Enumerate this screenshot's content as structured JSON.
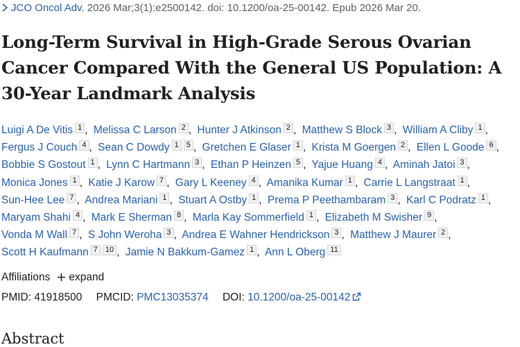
{
  "citation": {
    "journal": "JCO Oncol Adv.",
    "details": "2026 Mar;3(1):e2500142. doi: 10.1200/oa-25-00142. Epub 2026 Mar 20."
  },
  "title": "Long-Term Survival in High-Grade Serous Ovarian Cancer Compared With the General US Population: A 30-Year Landmark Analysis",
  "authors": [
    {
      "name": "Luigi A De Vitis",
      "affiliations": [
        "1"
      ]
    },
    {
      "name": "Melissa C Larson",
      "affiliations": [
        "2"
      ]
    },
    {
      "name": "Hunter J Atkinson",
      "affiliations": [
        "2"
      ]
    },
    {
      "name": "Matthew S Block",
      "affiliations": [
        "3"
      ]
    },
    {
      "name": "William A Cliby",
      "affiliations": [
        "1"
      ]
    },
    {
      "name": "Fergus J Couch",
      "affiliations": [
        "4"
      ]
    },
    {
      "name": "Sean C Dowdy",
      "affiliations": [
        "1",
        "5"
      ]
    },
    {
      "name": "Gretchen E Glaser",
      "affiliations": [
        "1"
      ]
    },
    {
      "name": "Krista M Goergen",
      "affiliations": [
        "2"
      ]
    },
    {
      "name": "Ellen L Goode",
      "affiliations": [
        "6"
      ]
    },
    {
      "name": "Bobbie S Gostout",
      "affiliations": [
        "1"
      ]
    },
    {
      "name": "Lynn C Hartmann",
      "affiliations": [
        "3"
      ]
    },
    {
      "name": "Ethan P Heinzen",
      "affiliations": [
        "5"
      ]
    },
    {
      "name": "Yajue Huang",
      "affiliations": [
        "4"
      ]
    },
    {
      "name": "Aminah Jatoi",
      "affiliations": [
        "3"
      ]
    },
    {
      "name": "Monica Jones",
      "affiliations": [
        "1"
      ]
    },
    {
      "name": "Katie J Karow",
      "affiliations": [
        "7"
      ]
    },
    {
      "name": "Gary L Keeney",
      "affiliations": [
        "4"
      ]
    },
    {
      "name": "Amanika Kumar",
      "affiliations": [
        "1"
      ]
    },
    {
      "name": "Carrie L Langstraat",
      "affiliations": [
        "1"
      ]
    },
    {
      "name": "Sun-Hee Lee",
      "affiliations": [
        "7"
      ]
    },
    {
      "name": "Andrea Mariani",
      "affiliations": [
        "1"
      ]
    },
    {
      "name": "Stuart A Ostby",
      "affiliations": [
        "1"
      ]
    },
    {
      "name": "Prema P Peethambaram",
      "affiliations": [
        "3"
      ]
    },
    {
      "name": "Karl C Podratz",
      "affiliations": [
        "1"
      ]
    },
    {
      "name": "Maryam Shahi",
      "affiliations": [
        "4"
      ]
    },
    {
      "name": "Mark E Sherman",
      "affiliations": [
        "8"
      ]
    },
    {
      "name": "Marla Kay Sommerfield",
      "affiliations": [
        "1"
      ]
    },
    {
      "name": "Elizabeth M Swisher",
      "affiliations": [
        "9"
      ]
    },
    {
      "name": "Vonda M Wall",
      "affiliations": [
        "7"
      ]
    },
    {
      "name": "S John Weroha",
      "affiliations": [
        "3"
      ]
    },
    {
      "name": "Andrea E Wahner Hendrickson",
      "affiliations": [
        "3"
      ]
    },
    {
      "name": "Matthew J Maurer",
      "affiliations": [
        "2"
      ]
    },
    {
      "name": "Scott H Kaufmann",
      "affiliations": [
        "7",
        "10"
      ]
    },
    {
      "name": "Jamie N Bakkum-Gamez",
      "affiliations": [
        "1"
      ]
    },
    {
      "name": "Ann L Oberg",
      "affiliations": [
        "11"
      ]
    }
  ],
  "affiliations_label": "Affiliations",
  "expand_label": "expand",
  "identifiers": {
    "pmid_label": "PMID:",
    "pmid": "41918500",
    "pmcid_label": "PMCID:",
    "pmcid": "PMC13035374",
    "doi_label": "DOI:",
    "doi": "10.1200/oa-25-00142"
  },
  "abstract_heading": "Abstract"
}
